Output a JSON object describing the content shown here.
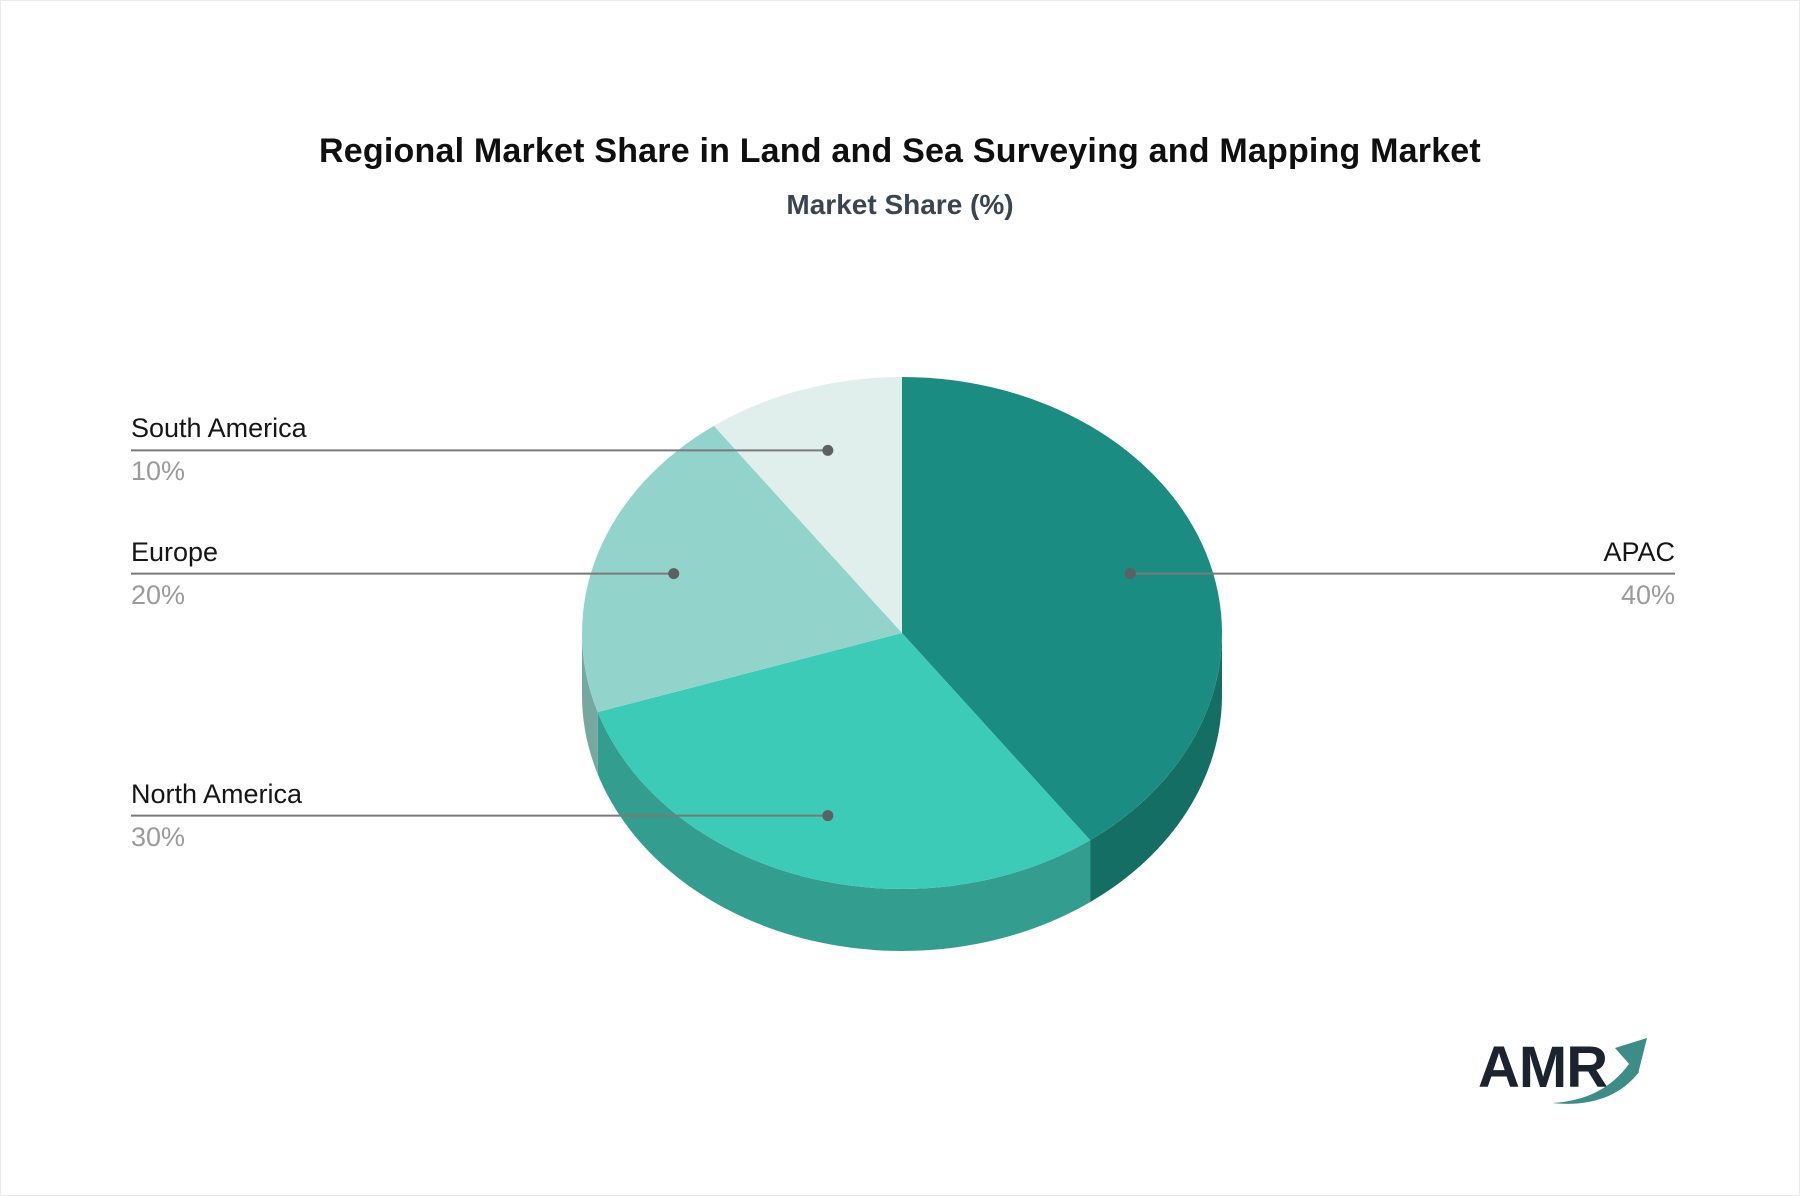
{
  "header": {
    "title": "Regional Market Share in Land and Sea Surveying and Mapping Market",
    "subtitle": "Market Share (%)"
  },
  "chart_data": {
    "type": "pie",
    "title": "Regional Market Share in Land and Sea Surveying and Mapping Market",
    "subtitle": "Market Share (%)",
    "unit": "%",
    "style": "3d-pie-with-depth",
    "start_angle_deg": 0,
    "direction": "clockwise",
    "legend_position": "callout-leader-lines",
    "categories": [
      "APAC",
      "North America",
      "Europe",
      "South America"
    ],
    "values": [
      40,
      30,
      20,
      10
    ],
    "slices": [
      {
        "label": "APAC",
        "value": 40,
        "percent_label": "40%",
        "color": "#1a8c81",
        "rim_color": "#146e64",
        "label_side": "right"
      },
      {
        "label": "North America",
        "value": 30,
        "percent_label": "30%",
        "color": "#3bcbb7",
        "rim_color": "#339e8f",
        "label_side": "left"
      },
      {
        "label": "Europe",
        "value": 20,
        "percent_label": "20%",
        "color": "#92d4cb",
        "rim_color": "#76a8a0",
        "label_side": "left"
      },
      {
        "label": "South America",
        "value": 10,
        "percent_label": "10%",
        "color": "#e0eeec",
        "rim_color": "#bdd5d1",
        "label_side": "left"
      }
    ],
    "theme": {
      "title_color": "#0f0f0f",
      "subtitle_color": "#3a4552",
      "label_color": "#161616",
      "percent_color": "#9b9b9b",
      "leader_line_color": "#7a7a7a",
      "dot_color": "#5c6060",
      "background": "#ffffff"
    }
  },
  "logo": {
    "text": "AMR",
    "arrow_icon": "trending-up-arrow",
    "text_color": "#1a232e",
    "arrow_color": "#3c8d87"
  }
}
